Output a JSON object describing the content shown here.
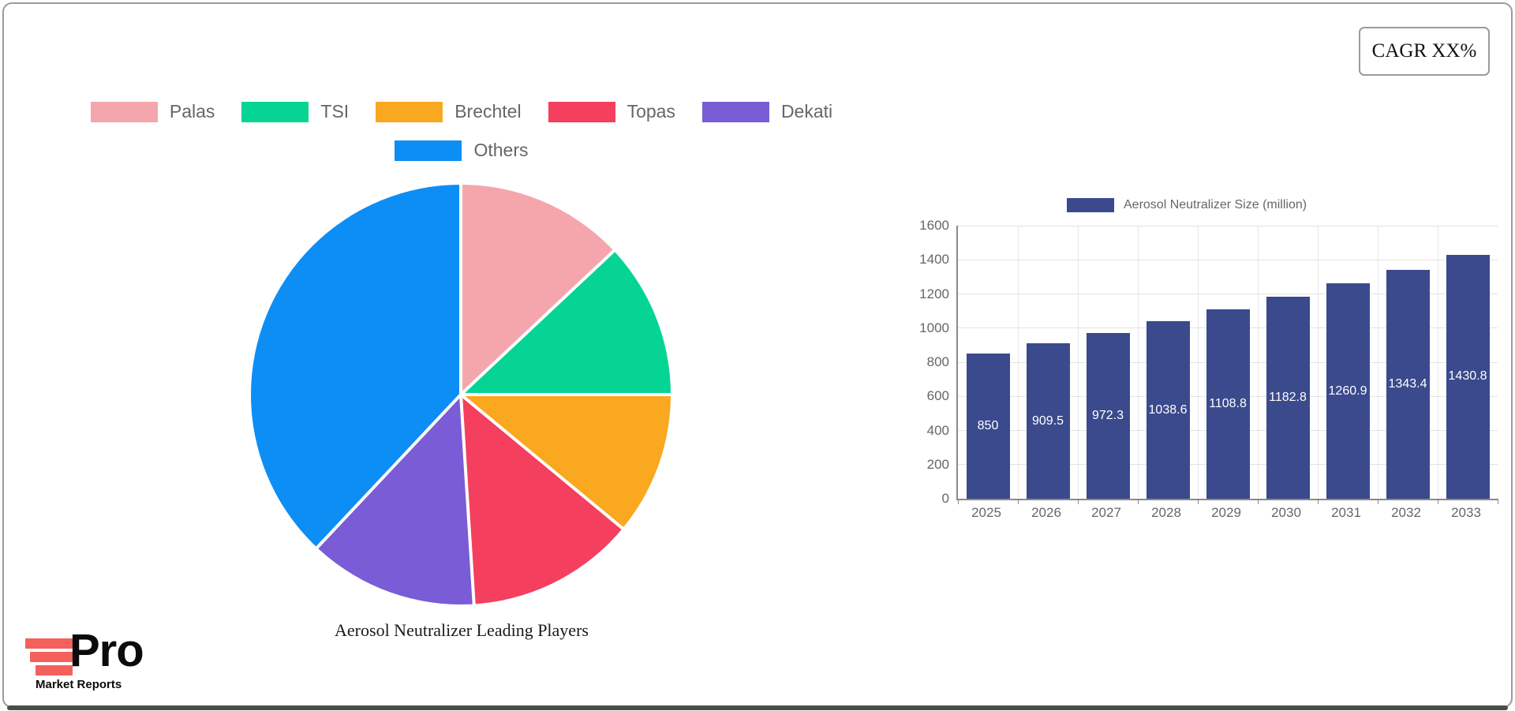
{
  "page": {
    "cagr_label": "CAGR XX%"
  },
  "branding": {
    "name": "Pro",
    "subtitle": "Market Reports"
  },
  "chart_data": [
    {
      "type": "pie",
      "title": "Aerosol Neutralizer Leading Players",
      "legend_position": "top",
      "legend_rows": [
        [
          "Palas",
          "TSI",
          "Brechtel",
          "Topas",
          "Dekati"
        ],
        [
          "Others"
        ]
      ],
      "labels": [
        "Palas",
        "TSI",
        "Brechtel",
        "Topas",
        "Dekati",
        "Others"
      ],
      "values": [
        13,
        12,
        11,
        13,
        13,
        38
      ],
      "colors": [
        "#F5A6AC",
        "#06D494",
        "#F9A81F",
        "#F43F5E",
        "#7A5CD6",
        "#0D8EF5"
      ],
      "start_angle_deg": 0,
      "direction": "clockwise"
    },
    {
      "type": "bar",
      "legend": [
        {
          "label": "Aerosol Neutralizer Size (million)",
          "color": "#3A4A8D"
        }
      ],
      "categories": [
        "2025",
        "2026",
        "2027",
        "2028",
        "2029",
        "2030",
        "2031",
        "2032",
        "2033"
      ],
      "values": [
        850,
        909.5,
        972.3,
        1038.6,
        1108.8,
        1182.8,
        1260.9,
        1343.4,
        1430.8
      ],
      "value_labels": [
        "850",
        "909.5",
        "972.3",
        "1038.6",
        "1108.8",
        "1182.8",
        "1260.9",
        "1343.4",
        "1430.8"
      ],
      "ylim": [
        0,
        1600
      ],
      "ytick_step": 200,
      "ytick_labels": [
        "0",
        "200",
        "400",
        "600",
        "800",
        "1000",
        "1200",
        "1400",
        "1600"
      ],
      "bar_color": "#3A4A8D",
      "grid": true,
      "value_label_color": "#ffffff"
    }
  ]
}
